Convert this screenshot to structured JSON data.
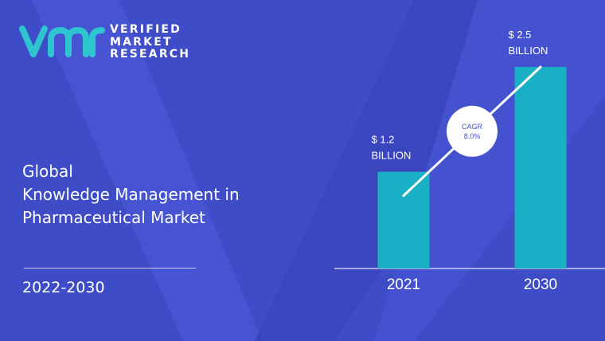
{
  "brand": {
    "line1": "VERIFIED",
    "line2": "MARKET",
    "line3": "RESEARCH",
    "logo_icon": "vmr-logo-icon",
    "accent": "#2ec4d0"
  },
  "report": {
    "title_line1": "Global",
    "title_line2": "Knowledge Management in",
    "title_line3": "Pharmaceutical Market",
    "period": "2022-2030"
  },
  "colors": {
    "background": "#3f4cc8",
    "bar": "#19afc4",
    "text": "#ffffff"
  },
  "chart_data": {
    "type": "bar",
    "categories": [
      "2021",
      "2030"
    ],
    "values": [
      1.2,
      2.5
    ],
    "value_labels": [
      [
        "$ 1.2",
        "BILLION"
      ],
      [
        "$ 2.5",
        "BILLION"
      ]
    ],
    "unit": "USD billion",
    "cagr_label": [
      "CAGR",
      "8.0%"
    ],
    "ylim": [
      0,
      2.5
    ],
    "grid": false,
    "legend": "none"
  }
}
